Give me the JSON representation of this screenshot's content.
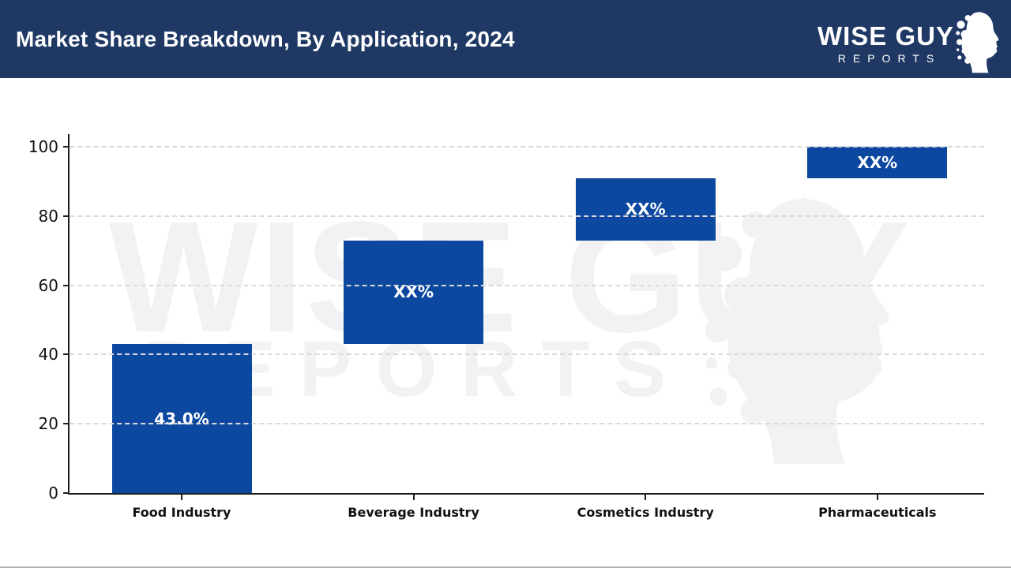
{
  "header": {
    "title": "Market Share Breakdown, By Application, 2024",
    "bg_color": "#1f3864",
    "logo": {
      "line1": "WISE GUY",
      "line2": "REPORTS"
    }
  },
  "watermark": {
    "line1": "WISE GUY",
    "line2": "REPORTS"
  },
  "chart_data": {
    "type": "bar",
    "subtype": "waterfall",
    "title": "Market Share Breakdown, By Application, 2024",
    "xlabel": "",
    "ylabel": "",
    "ylim": [
      0,
      100
    ],
    "yticks": [
      0,
      20,
      40,
      60,
      80,
      100
    ],
    "grid": "horizontal-dashed",
    "grid_above_bars": true,
    "legend": "none",
    "bar_color": "#0d48a0",
    "grid_color": "#d9d9d9",
    "categories": [
      "Food Industry",
      "Beverage Industry",
      "Cosmetics Industry",
      "Pharmaceuticals"
    ],
    "values": [
      43,
      30,
      18,
      9
    ],
    "bars": [
      {
        "category": "Food Industry",
        "start": 0,
        "end": 43,
        "label": "43.0%"
      },
      {
        "category": "Beverage Industry",
        "start": 43,
        "end": 73,
        "label": "XX%"
      },
      {
        "category": "Cosmetics Industry",
        "start": 73,
        "end": 91,
        "label": "XX%"
      },
      {
        "category": "Pharmaceuticals",
        "start": 91,
        "end": 100,
        "label": "XX%"
      }
    ]
  }
}
